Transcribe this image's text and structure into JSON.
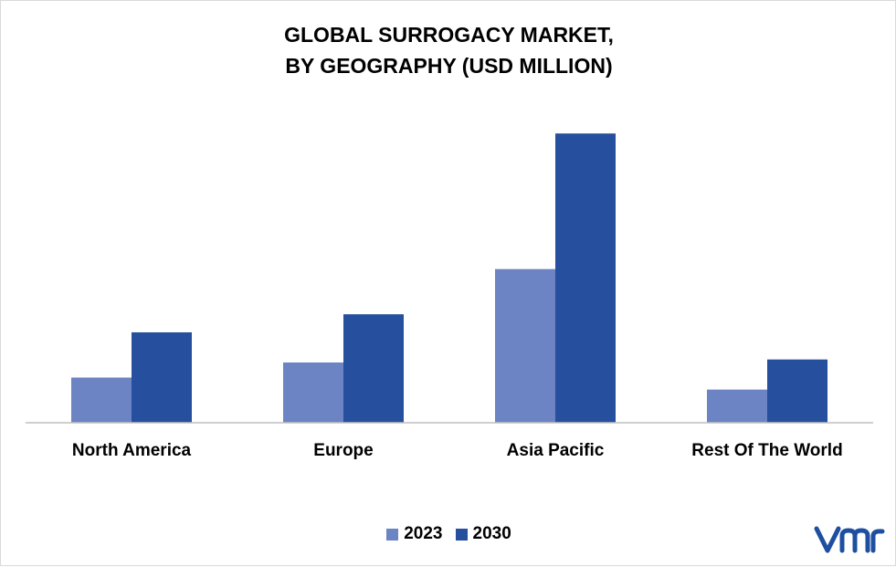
{
  "chart_data": {
    "type": "bar",
    "title": [
      "GLOBAL SURROGACY MARKET,",
      "BY GEOGRAPHY (USD MILLION)"
    ],
    "categories": [
      "North America",
      "Europe",
      "Asia Pacific",
      "Rest Of The World"
    ],
    "series": [
      {
        "name": "2023",
        "color": "#6d84c4",
        "values": [
          15,
          20,
          51,
          11
        ]
      },
      {
        "name": "2030",
        "color": "#264f9d",
        "values": [
          30,
          36,
          96,
          21
        ]
      }
    ],
    "ylim": [
      0,
      100
    ],
    "grid": false,
    "legend": "bottom-center"
  },
  "logo": {
    "icon": "vmr-logo-icon",
    "color": "#1e4fa0"
  }
}
